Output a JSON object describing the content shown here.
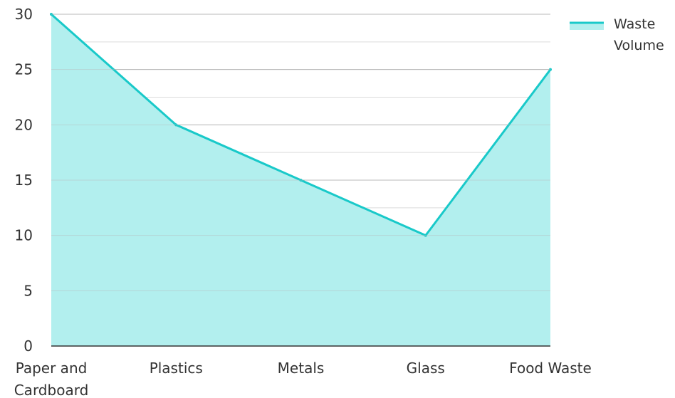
{
  "chart_data": {
    "type": "area",
    "categories": [
      "Paper and Cardboard",
      "Plastics",
      "Metals",
      "Glass",
      "Food Waste"
    ],
    "series": [
      {
        "name": "Waste Volume",
        "values": [
          30,
          20,
          15,
          10,
          25
        ]
      }
    ],
    "ylim": [
      0,
      30
    ],
    "yticks": [
      0,
      5,
      10,
      15,
      20,
      25,
      30
    ],
    "grid": true,
    "legend": "top-right",
    "colors": {
      "line": "#19c9c9",
      "fill": "#b2efee",
      "grid_major": "#b8b8b8",
      "grid_minor": "#dcdcdc",
      "axis": "#333333"
    }
  }
}
